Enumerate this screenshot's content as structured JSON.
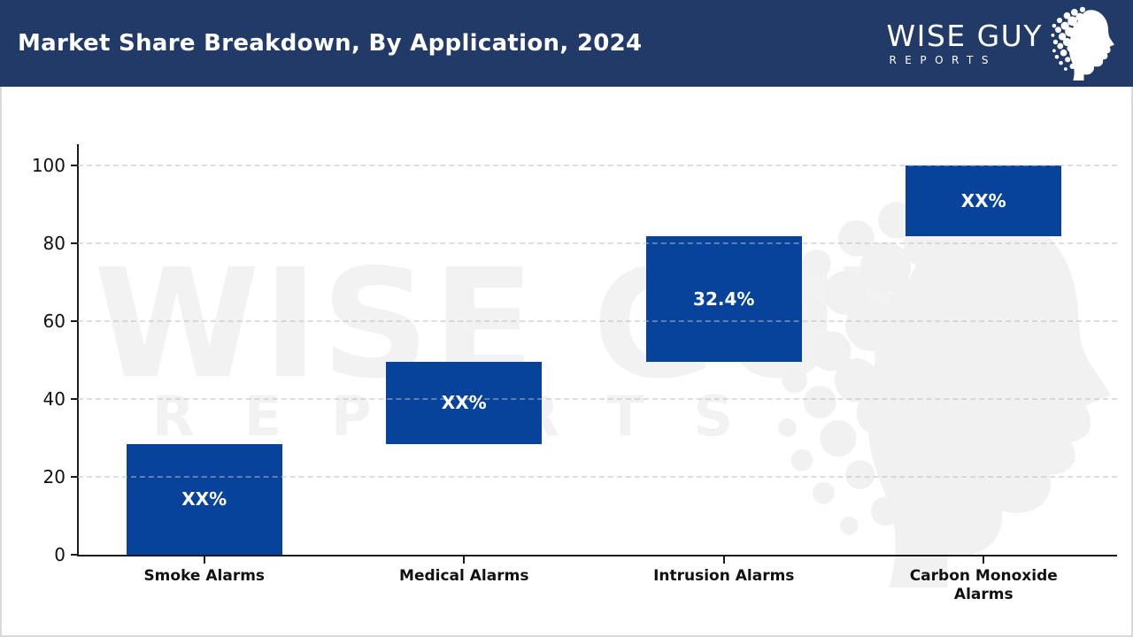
{
  "header": {
    "title": "Market Share Breakdown, By Application, 2024",
    "logo": {
      "line1": "WISE GUY",
      "line2": "REPORTS"
    }
  },
  "watermark": {
    "line1": "WISE GUY",
    "line2": "REPORTS"
  },
  "colors": {
    "header_bg": "#213a68",
    "bar": "#07439a",
    "bar_label": "#ffffff",
    "axis": "#1a1a1a",
    "grid": "rgba(190,190,190,0.5)",
    "watermark": "#f2f2f2",
    "border": "#d9d9d9"
  },
  "chart_data": {
    "type": "bar",
    "subtype": "floating-segment (waterfall style)",
    "title": "Market Share Breakdown, By Application, 2024",
    "xlabel": "",
    "ylabel": "",
    "ylim": [
      0,
      105
    ],
    "yticks": [
      0,
      20,
      40,
      60,
      80,
      100
    ],
    "grid": "horizontal dashed, drawn over bars",
    "legend": "none",
    "categories": [
      "Smoke Alarms",
      "Medical Alarms",
      "Intrusion Alarms",
      "Carbon Monoxide Alarms"
    ],
    "bars": [
      {
        "category": "Smoke Alarms",
        "start": 0,
        "end": 28.5,
        "label": "XX%"
      },
      {
        "category": "Medical Alarms",
        "start": 28.5,
        "end": 49.5,
        "label": "XX%"
      },
      {
        "category": "Intrusion Alarms",
        "start": 49.5,
        "end": 81.9,
        "label": "32.4%",
        "value": 32.4
      },
      {
        "category": "Carbon Monoxide Alarms",
        "start": 81.9,
        "end": 100,
        "label": "XX%"
      }
    ]
  }
}
